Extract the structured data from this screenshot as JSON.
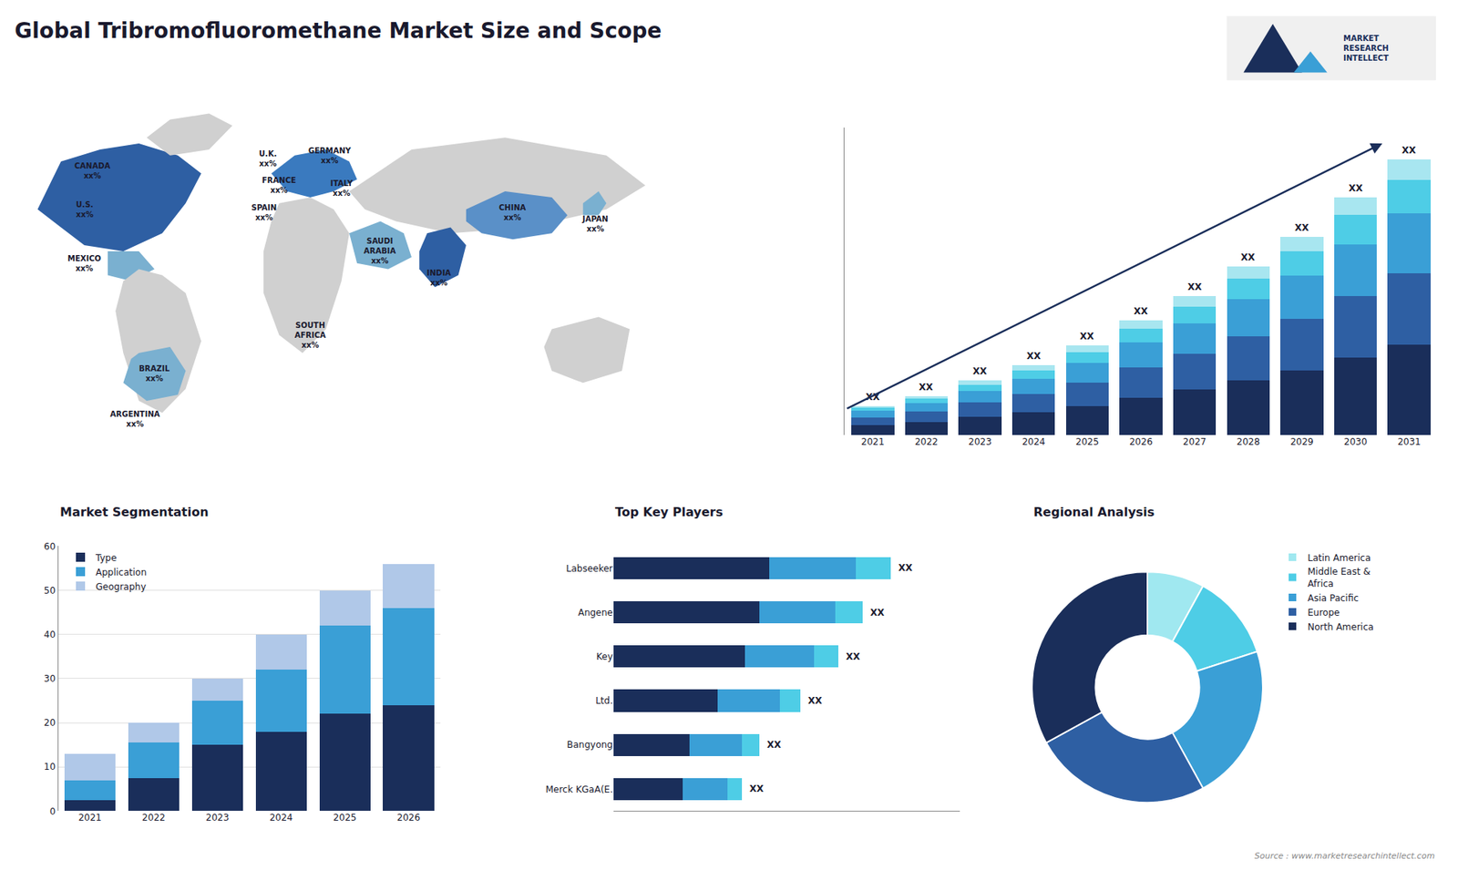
{
  "title": "Global Tribromofluoromethane Market Size and Scope",
  "annotations": [
    {
      "text": "MARKET\nRESEARCH\nINTELLECT"
    },
    {
      "text": "Source : www.marketresearchintellect.com"
    }
  ],
  "chart_data": [
    {
      "type": "map",
      "annotations": [
        {
          "text": "CANADA\nxx%"
        },
        {
          "text": "U.S.\nxx%"
        },
        {
          "text": "MEXICO\nxx%"
        },
        {
          "text": "BRAZIL\nxx%"
        },
        {
          "text": "ARGENTINA\nxx%"
        },
        {
          "text": "U.K.\nxx%"
        },
        {
          "text": "FRANCE\nxx%"
        },
        {
          "text": "SPAIN\nxx%"
        },
        {
          "text": "GERMANY\nxx%"
        },
        {
          "text": "ITALY\nxx%"
        },
        {
          "text": "SAUDI\nARABIA\nxx%"
        },
        {
          "text": "SOUTH\nAFRICA\nxx%"
        },
        {
          "text": "CHINA\nxx%"
        },
        {
          "text": "INDIA\nxx%"
        },
        {
          "text": "JAPAN\nxx%"
        }
      ]
    },
    {
      "type": "bar",
      "stacked": true,
      "categories": [
        "2021",
        "2022",
        "2023",
        "2024",
        "2025",
        "2026",
        "2027",
        "2028",
        "2029",
        "2030",
        "2031"
      ],
      "series": [
        {
          "name": "North America",
          "color": "#1a2e5a",
          "values": [
            1.5,
            2.0,
            2.8,
            3.5,
            4.5,
            5.8,
            7.0,
            8.5,
            10.0,
            12.0,
            14.0
          ]
        },
        {
          "name": "Europe",
          "color": "#2e5fa3",
          "values": [
            1.2,
            1.6,
            2.2,
            2.8,
            3.6,
            4.6,
            5.6,
            6.8,
            8.0,
            9.5,
            11.0
          ]
        },
        {
          "name": "Asia Pacific",
          "color": "#3a9fd6",
          "values": [
            1.0,
            1.3,
            1.8,
            2.4,
            3.0,
            3.9,
            4.7,
            5.7,
            6.7,
            8.0,
            9.3
          ]
        },
        {
          "name": "Middle East & Africa",
          "color": "#4ecde6",
          "values": [
            0.5,
            0.7,
            1.0,
            1.3,
            1.7,
            2.1,
            2.6,
            3.2,
            3.7,
            4.5,
            5.2
          ]
        },
        {
          "name": "Latin America",
          "color": "#a8e6f0",
          "values": [
            0.3,
            0.4,
            0.6,
            0.8,
            1.0,
            1.3,
            1.6,
            1.9,
            2.2,
            2.7,
            3.1
          ]
        }
      ],
      "ylim": [
        0,
        47.6
      ],
      "yticks": [],
      "tick_labels": "x",
      "grid": false,
      "annotations": [
        {
          "x": "2021",
          "text": "XX"
        },
        {
          "x": "2022",
          "text": "XX"
        },
        {
          "x": "2023",
          "text": "XX"
        },
        {
          "x": "2024",
          "text": "XX"
        },
        {
          "x": "2025",
          "text": "XX"
        },
        {
          "x": "2026",
          "text": "XX"
        },
        {
          "x": "2027",
          "text": "XX"
        },
        {
          "x": "2028",
          "text": "XX"
        },
        {
          "x": "2029",
          "text": "XX"
        },
        {
          "x": "2030",
          "text": "XX"
        },
        {
          "x": "2031",
          "text": "XX"
        }
      ]
    },
    {
      "type": "bar",
      "stacked": true,
      "title": "Market Segmentation",
      "categories": [
        "2021",
        "2022",
        "2023",
        "2024",
        "2025",
        "2026"
      ],
      "series": [
        {
          "name": "Type",
          "color": "#1a2e5a",
          "values": [
            2.5,
            7.5,
            15.0,
            18.0,
            22.0,
            24.0
          ]
        },
        {
          "name": "Application",
          "color": "#3a9fd6",
          "values": [
            4.5,
            8.0,
            10.0,
            14.0,
            20.0,
            22.0
          ]
        },
        {
          "name": "Geography",
          "color": "#b0c8e8",
          "values": [
            6.0,
            4.5,
            5.0,
            8.0,
            8.0,
            10.0
          ]
        }
      ],
      "ylim": [
        0,
        60
      ],
      "yticks": [
        0,
        10,
        20,
        30,
        40,
        50,
        60
      ],
      "grid": true,
      "legend": "upper left"
    },
    {
      "type": "bar",
      "orientation": "horizontal",
      "stacked": true,
      "title": "Top Key Players",
      "categories": [
        "Labseeker",
        "Angene",
        "Key",
        "Ltd.",
        "Bangyong",
        "Merck KGaA(E."
      ],
      "series": [
        {
          "color": "#1a2e5a",
          "values": [
            0.45,
            0.42,
            0.38,
            0.3,
            0.22,
            0.2
          ]
        },
        {
          "color": "#3a9fd6",
          "values": [
            0.25,
            0.22,
            0.2,
            0.18,
            0.15,
            0.13
          ]
        },
        {
          "color": "#4ecde6",
          "values": [
            0.1,
            0.08,
            0.07,
            0.06,
            0.05,
            0.04
          ]
        }
      ],
      "xlim": [
        0,
        1
      ],
      "xticks": [],
      "tick_labels": "y",
      "grid": false,
      "annotations": [
        {
          "y": "Labseeker",
          "text": "XX"
        },
        {
          "y": "Angene",
          "text": "XX"
        },
        {
          "y": "Key",
          "text": "XX"
        },
        {
          "y": "Ltd.",
          "text": "XX"
        },
        {
          "y": "Bangyong",
          "text": "XX"
        },
        {
          "y": "Merck KGaA(E.",
          "text": "XX"
        }
      ]
    },
    {
      "type": "donut",
      "title": "Regional Analysis",
      "categories": [
        "Latin America",
        "Middle East &\nAfrica",
        "Asia Pacific",
        "Europe",
        "North America"
      ],
      "values": [
        8,
        12,
        22,
        25,
        33
      ],
      "colors": [
        "#a0e8f0",
        "#4ecde6",
        "#3a9fd6",
        "#2e5fa3",
        "#1a2e5a"
      ],
      "legend": "right"
    }
  ]
}
